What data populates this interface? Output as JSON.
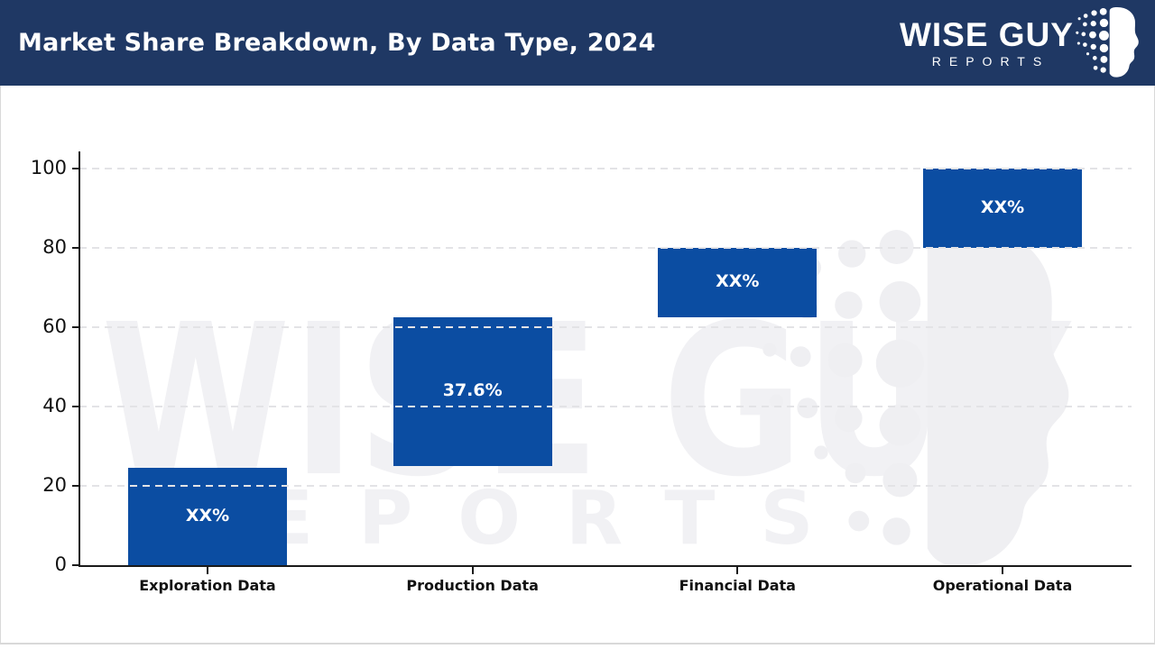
{
  "header": {
    "title": "Market Share Breakdown, By Data Type, 2024",
    "bg_color": "#1f3864",
    "logo": {
      "line1": "WISE GUY",
      "line2": "REPORTS"
    }
  },
  "watermark": {
    "line1": "WISE GUY",
    "line2": "REPORTS"
  },
  "chart_data": {
    "type": "bar",
    "subtype": "floating-waterfall",
    "title": "Market Share Breakdown, By Data Type, 2024",
    "categories": [
      "Exploration Data",
      "Production Data",
      "Financial Data",
      "Operational Data"
    ],
    "segments": [
      {
        "category": "Exploration Data",
        "from": 0,
        "to": 24.5,
        "label": "XX%"
      },
      {
        "category": "Production Data",
        "from": 25,
        "to": 62.6,
        "label": "37.6%"
      },
      {
        "category": "Financial Data",
        "from": 62.6,
        "to": 80,
        "label": "XX%"
      },
      {
        "category": "Operational Data",
        "from": 80,
        "to": 100,
        "label": "XX%"
      }
    ],
    "yticks": [
      0,
      20,
      40,
      60,
      80,
      100
    ],
    "ylim": [
      0,
      105
    ],
    "xlabel": "",
    "ylabel": "",
    "grid": "horizontal-dashed",
    "legend": "none",
    "bar_color": "#0b4da2",
    "grid_color": "#e3e3e6",
    "axis_color": "#1a1a1a"
  }
}
